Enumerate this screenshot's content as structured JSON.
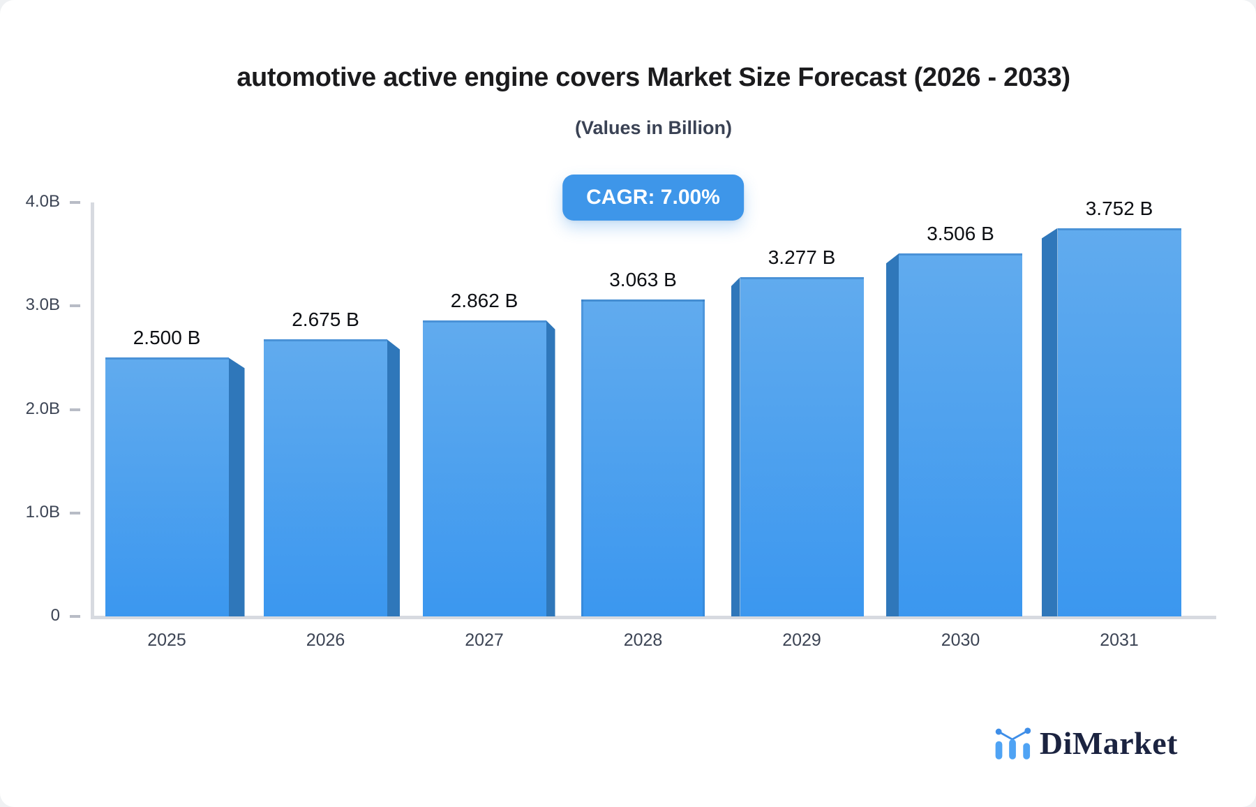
{
  "chart_data": {
    "type": "bar",
    "title": "automotive active engine covers Market Size Forecast (2026 - 2033)",
    "subtitle": "(Values in Billion)",
    "cagr_label": "CAGR: 7.00%",
    "categories": [
      "2025",
      "2026",
      "2027",
      "2028",
      "2029",
      "2030",
      "2031"
    ],
    "values": [
      2.5,
      2.675,
      2.862,
      3.063,
      3.277,
      3.506,
      3.752
    ],
    "value_labels": [
      "2.500 B",
      "2.675 B",
      "2.862 B",
      "3.063 B",
      "3.277 B",
      "3.506 B",
      "3.752 B"
    ],
    "xlabel": "",
    "ylabel": "",
    "ylim": [
      0,
      4.0
    ],
    "yticks": [
      {
        "label": "4.0B",
        "value": 4.0
      },
      {
        "label": "3.0B",
        "value": 3.0
      },
      {
        "label": "2.0B",
        "value": 2.0
      },
      {
        "label": "1.0B",
        "value": 1.0
      },
      {
        "label": "0",
        "value": 0.0
      }
    ],
    "grid": false,
    "legend": null,
    "colors": {
      "bar_face_top": "#61ABEE",
      "bar_face_bottom": "#3B97EF",
      "bar_side": "#2F77BA",
      "badge_bg": "#3E96E9",
      "axis_line": "#D7DAE0",
      "tick": "#B8BCC6",
      "axis_label": "#3C4454",
      "value_label": "#0D0F13",
      "title": "#1B1B1D",
      "subtitle": "#3A4254"
    }
  },
  "branding": {
    "logo_text": "DiMarket",
    "logo_icon": "bar-chart-trend-icon",
    "logo_text_color": "#1B2340",
    "logo_bar_color": "#4FA3F4",
    "logo_accent_color": "#3E8EE8"
  }
}
